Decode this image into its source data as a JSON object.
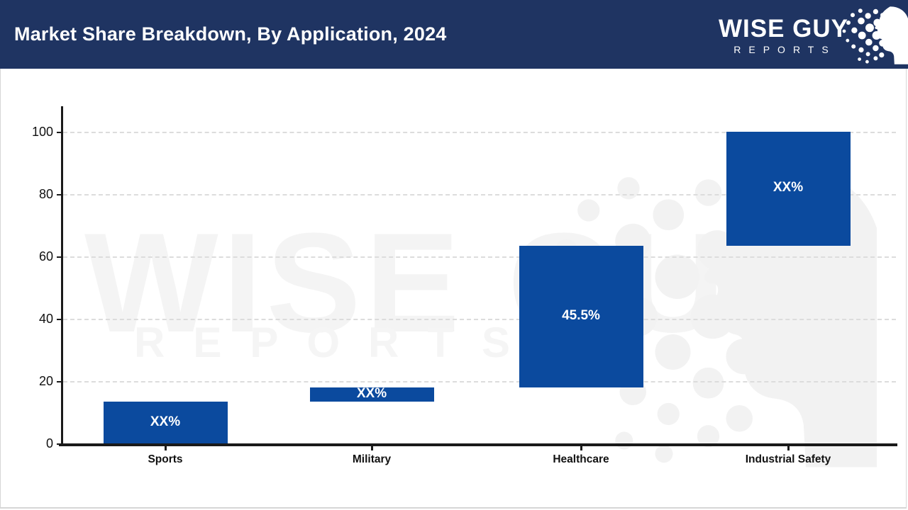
{
  "header": {
    "title": "Market Share Breakdown, By Application, 2024",
    "logo": {
      "line1": "WISE GUY",
      "line2": "REPORTS"
    }
  },
  "watermark": {
    "line1": "WISE GUY",
    "line2": "REPORTS"
  },
  "colors": {
    "header_bg": "#1f3462",
    "bar": "#0b4a9e",
    "bar_label": "#ffffff",
    "axis": "#1a1a1a",
    "gridline": "#dcdcdc",
    "watermark": "#f4f4f4"
  },
  "chart_data": {
    "type": "bar",
    "variant": "floating-segment-waterfall",
    "title": "Market Share Breakdown, By Application, 2024",
    "categories": [
      "Sports",
      "Military",
      "Healthcare",
      "Industrial Safety"
    ],
    "segments": [
      {
        "category": "Sports",
        "start": 0,
        "end": 13.6,
        "label": "XX%"
      },
      {
        "category": "Military",
        "start": 13.6,
        "end": 18.2,
        "label": "XX%"
      },
      {
        "category": "Healthcare",
        "start": 18.2,
        "end": 63.6,
        "label": "45.5%"
      },
      {
        "category": "Industrial Safety",
        "start": 63.6,
        "end": 100.3,
        "label": "XX%"
      }
    ],
    "xlabel": "",
    "ylabel": "",
    "yticks": [
      0,
      20,
      40,
      60,
      80,
      100
    ],
    "ylim": [
      0,
      108
    ],
    "grid": "horizontal-dashed",
    "legend": "none"
  }
}
